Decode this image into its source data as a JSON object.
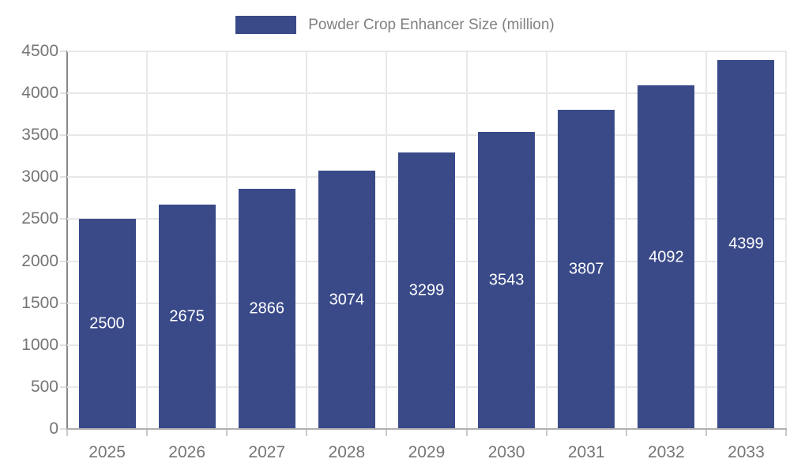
{
  "legend": {
    "label": "Powder Crop Enhancer Size (million)"
  },
  "colors": {
    "bar": "#3A4A89",
    "grid": "#e8e8e8",
    "y_axis_line": "#888888",
    "x_axis_line": "#b0b0b0",
    "tick_mark": "#c9c9c9",
    "y_tick_mark": "#e0e0e0",
    "axis_text": "#757575",
    "legend_text": "#808080",
    "bar_label_text": "#ffffff",
    "background": "#ffffff"
  },
  "chart_data": {
    "type": "bar",
    "title": "Powder Crop Enhancer Size (million)",
    "categories": [
      "2025",
      "2026",
      "2027",
      "2028",
      "2029",
      "2030",
      "2031",
      "2032",
      "2033"
    ],
    "values": [
      2500,
      2675,
      2866,
      3074,
      3299,
      3543,
      3807,
      4092,
      4399
    ],
    "xlabel": "",
    "ylabel": "",
    "ylim": [
      0,
      4500
    ],
    "ytick_step": 500,
    "yticks": [
      0,
      500,
      1000,
      1500,
      2000,
      2500,
      3000,
      3500,
      4000,
      4500
    ],
    "grid": true,
    "legend_position": "top-center",
    "value_labels": "inside-center-white"
  }
}
